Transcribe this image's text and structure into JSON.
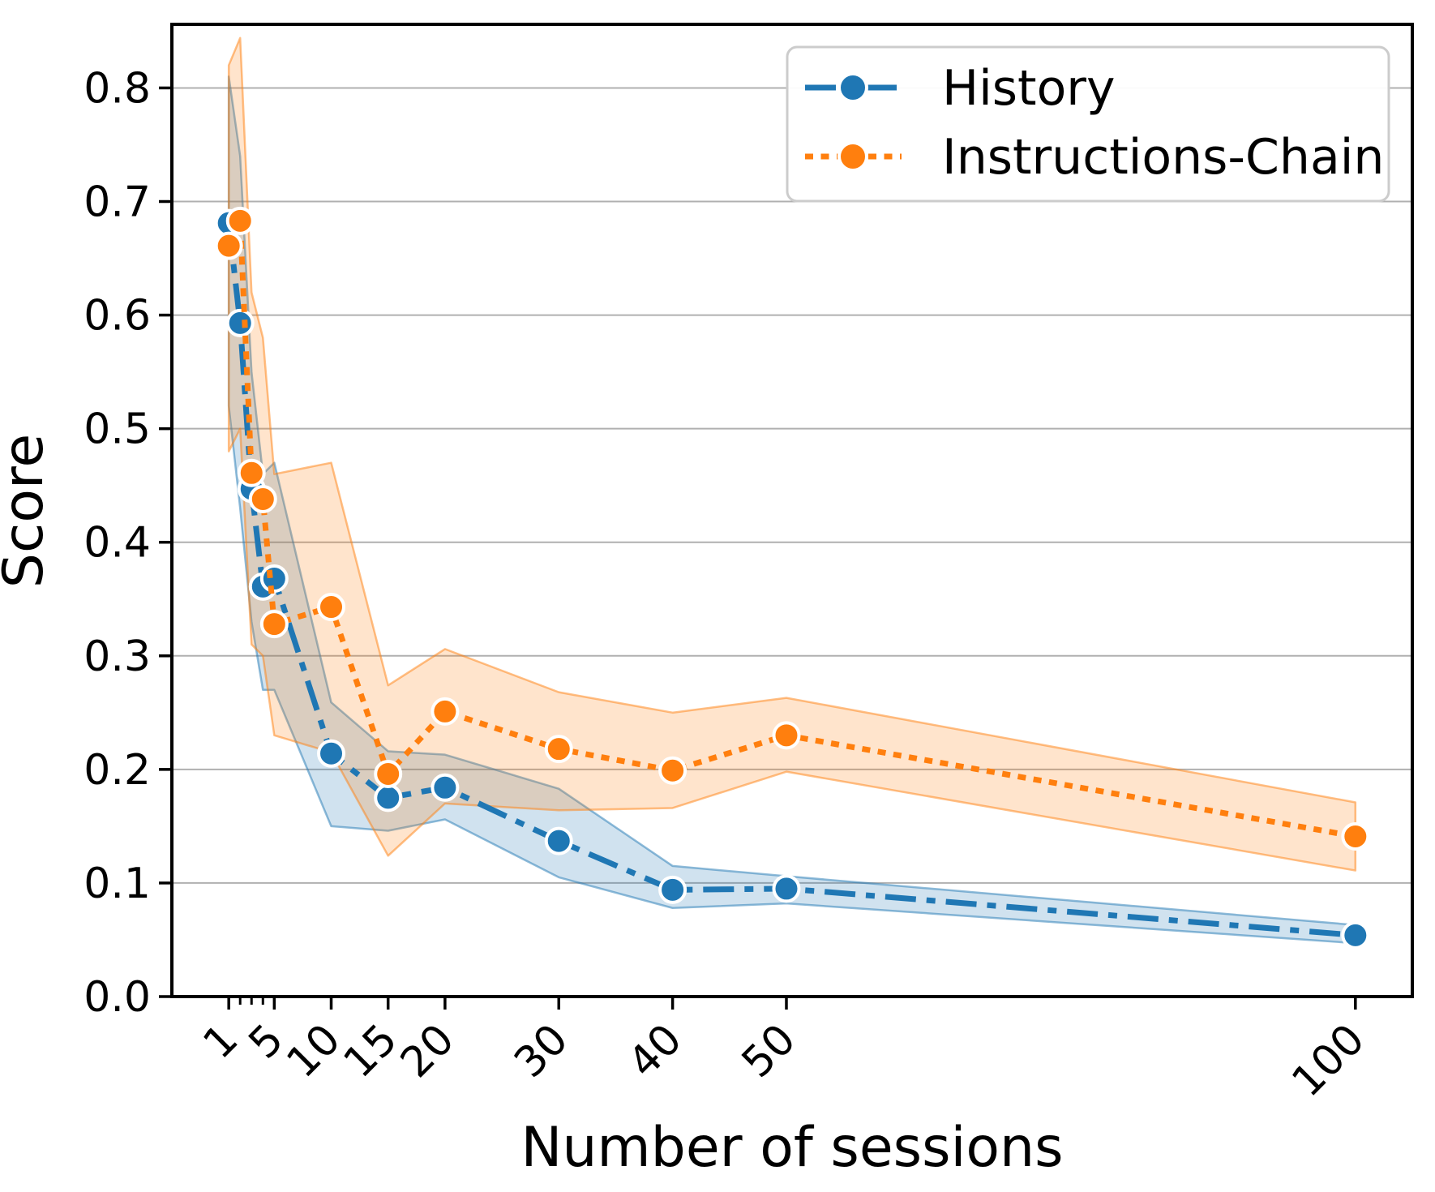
{
  "chart_data": {
    "type": "line",
    "title": "",
    "xlabel": "Number of sessions",
    "ylabel": "Score",
    "grid": "horizontal-only",
    "grid_color": "#b0b0b0",
    "spine_color": "#000000",
    "background_color": "#ffffff",
    "legend_position": "upper right",
    "xlim": [
      -4,
      105
    ],
    "ylim": [
      0,
      0.856
    ],
    "x": [
      1,
      2,
      3,
      4,
      5,
      10,
      15,
      20,
      30,
      40,
      50,
      100
    ],
    "xticks_major": [
      1,
      5,
      10,
      15,
      20,
      30,
      40,
      50,
      100
    ],
    "xticks_minor": [
      2,
      3,
      4
    ],
    "xtick_labels": [
      "1",
      "5",
      "10",
      "15",
      "20",
      "30",
      "40",
      "50",
      "100"
    ],
    "yticks": [
      0.0,
      0.1,
      0.2,
      0.3,
      0.4,
      0.5,
      0.6,
      0.7,
      0.8
    ],
    "ytick_labels": [
      "0.0",
      "0.1",
      "0.2",
      "0.3",
      "0.4",
      "0.5",
      "0.6",
      "0.7",
      "0.8"
    ],
    "band_fill_opacity": 0.21,
    "band_edge_opacity": 0.5,
    "series": [
      {
        "name": "History",
        "color": "#1f77b4",
        "linestyle": "dashdot",
        "marker": "circle",
        "values": [
          0.681,
          0.593,
          0.447,
          0.361,
          0.368,
          0.214,
          0.175,
          0.184,
          0.137,
          0.094,
          0.095,
          0.054
        ],
        "band_lower": [
          0.52,
          0.43,
          0.33,
          0.27,
          0.27,
          0.15,
          0.146,
          0.156,
          0.105,
          0.078,
          0.082,
          0.047
        ],
        "band_upper": [
          0.81,
          0.74,
          0.55,
          0.46,
          0.47,
          0.259,
          0.216,
          0.213,
          0.183,
          0.115,
          0.106,
          0.063
        ]
      },
      {
        "name": "Instructions-Chain",
        "color": "#ff7f0e",
        "linestyle": "dotted",
        "marker": "circle",
        "values": [
          0.661,
          0.683,
          0.461,
          0.438,
          0.328,
          0.343,
          0.196,
          0.251,
          0.218,
          0.199,
          0.23,
          0.141
        ],
        "band_lower": [
          0.48,
          0.5,
          0.31,
          0.3,
          0.23,
          0.215,
          0.124,
          0.17,
          0.164,
          0.166,
          0.198,
          0.111
        ],
        "band_upper": [
          0.82,
          0.844,
          0.62,
          0.58,
          0.46,
          0.47,
          0.274,
          0.306,
          0.268,
          0.25,
          0.263,
          0.171
        ]
      }
    ]
  }
}
